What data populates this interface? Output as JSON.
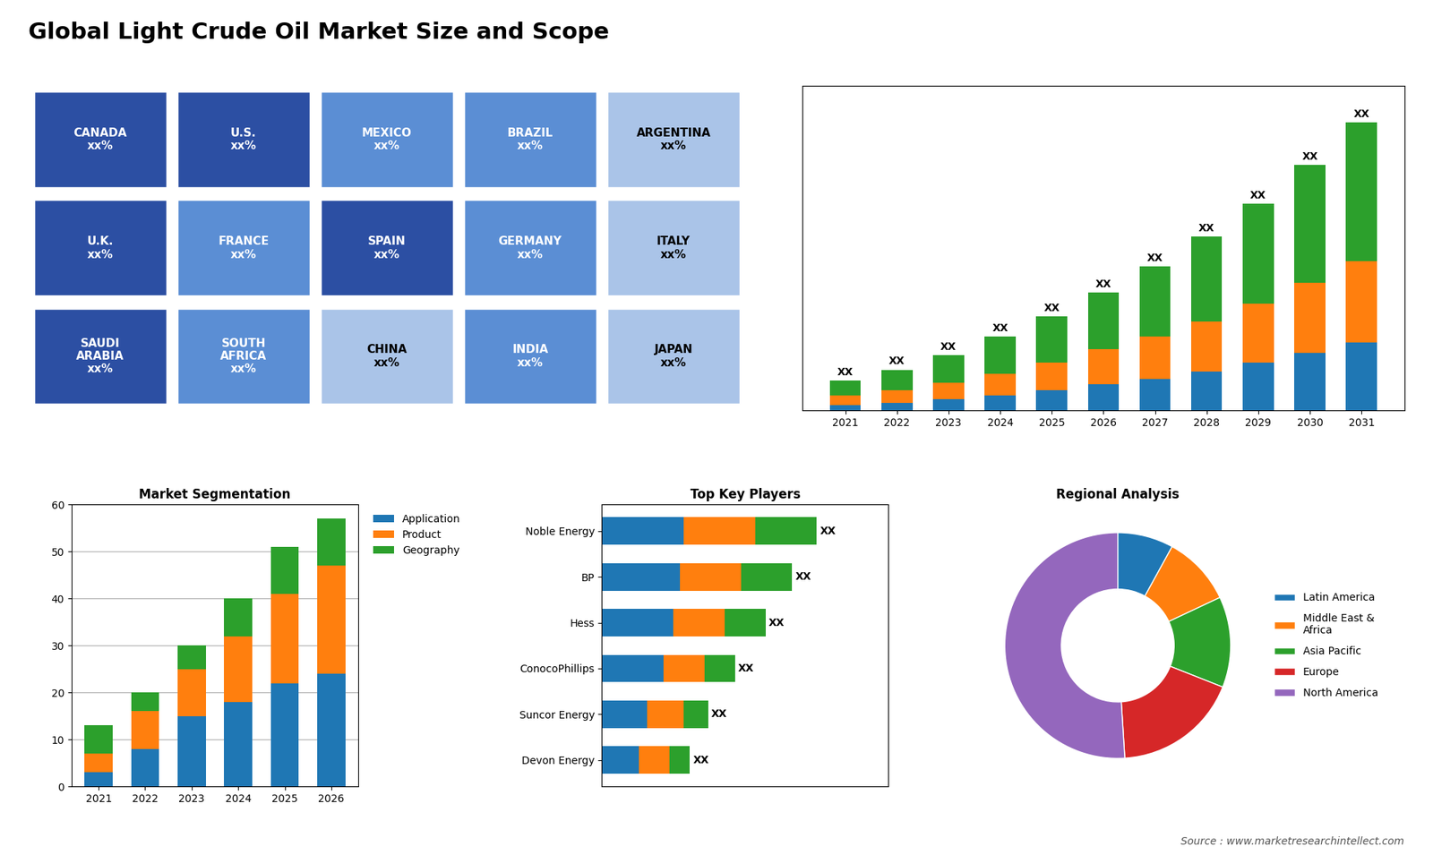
{
  "title": "Global Light Crude Oil Market Size and Scope",
  "annotations": [
    "Source : www.marketresearchintellect.com"
  ],
  "chart_data": [
    {
      "type": "map",
      "categories": [
        "CANADA\nxx%",
        "U.S.\nxx%",
        "MEXICO\nxx%",
        "BRAZIL\nxx%",
        "ARGENTINA\nxx%",
        "U.K.\nxx%",
        "FRANCE\nxx%",
        "SPAIN\nxx%",
        "GERMANY\nxx%",
        "ITALY\nxx%",
        "SAUDI\nARABIA\nxx%",
        "SOUTH\nAFRICA\nxx%",
        "CHINA\nxx%",
        "INDIA\nxx%",
        "JAPAN\nxx%"
      ],
      "colors": [
        "#2c4fa3",
        "#2c4fa3",
        "#5b8ed4",
        "#5b8ed4",
        "#aac4e8",
        "#2c4fa3",
        "#5b8ed4",
        "#2c4fa3",
        "#5b8ed4",
        "#aac4e8",
        "#2c4fa3",
        "#5b8ed4",
        "#aac4e8",
        "#5b8ed4",
        "#aac4e8"
      ]
    },
    {
      "type": "bar",
      "stacked": true,
      "tick_labels": "x",
      "categories": [
        "2021",
        "2022",
        "2023",
        "2024",
        "2025",
        "2026",
        "2027",
        "2028",
        "2029",
        "2030",
        "2031"
      ],
      "series": [
        {
          "values": [
            0.3,
            0.4,
            0.6,
            0.8,
            1.1,
            1.4,
            1.7,
            2.1,
            2.6,
            3.1,
            3.7
          ]
        },
        {
          "values": [
            0.5,
            0.7,
            0.9,
            1.2,
            1.5,
            1.9,
            2.3,
            2.7,
            3.2,
            3.8,
            4.4
          ]
        },
        {
          "values": [
            0.8,
            1.1,
            1.5,
            2.0,
            2.5,
            3.1,
            3.8,
            4.6,
            5.4,
            6.4,
            7.5
          ]
        }
      ],
      "value_labels": [
        "XX",
        "XX",
        "XX",
        "XX",
        "XX",
        "XX",
        "XX",
        "XX",
        "XX",
        "XX",
        "XX"
      ],
      "ylim": [
        0,
        17.6
      ]
    },
    {
      "type": "bar",
      "stacked": true,
      "title": "Market Segmentation",
      "categories": [
        "2021",
        "2022",
        "2023",
        "2024",
        "2025",
        "2026"
      ],
      "series": [
        {
          "name": "Application",
          "values": [
            3,
            8,
            15,
            18,
            22,
            24
          ]
        },
        {
          "name": "Product",
          "values": [
            4,
            8,
            10,
            14,
            19,
            23
          ]
        },
        {
          "name": "Geography",
          "values": [
            6,
            4,
            5,
            8,
            10,
            10
          ]
        }
      ],
      "ylim": [
        0,
        60
      ],
      "yticks": [
        0,
        10,
        20,
        30,
        40,
        50,
        60
      ],
      "grid": true,
      "legend": "upper left"
    },
    {
      "type": "bar",
      "stacked": true,
      "orientation": "horizontal",
      "tick_labels": "y",
      "title": "Top Key Players",
      "categories": [
        "Noble Energy",
        "BP",
        "Hess",
        "ConocoPhillips",
        "Suncor Energy",
        "Devon Energy"
      ],
      "series": [
        {
          "values": [
            4.0,
            3.8,
            3.5,
            3.0,
            2.2,
            1.8
          ]
        },
        {
          "values": [
            3.5,
            3.0,
            2.5,
            2.0,
            1.8,
            1.5
          ]
        },
        {
          "values": [
            3.0,
            2.5,
            2.0,
            1.5,
            1.2,
            1.0
          ]
        }
      ],
      "value_labels": [
        "XX",
        "XX",
        "XX",
        "XX",
        "XX",
        "XX"
      ],
      "xlim": [
        0,
        14
      ]
    },
    {
      "type": "donut",
      "title": "Regional Analysis",
      "categories": [
        "Latin America",
        "Middle East &\nAfrica",
        "Asia Pacific",
        "Europe",
        "North America"
      ],
      "values": [
        8,
        10,
        13,
        18,
        51
      ],
      "legend": "center left"
    }
  ]
}
